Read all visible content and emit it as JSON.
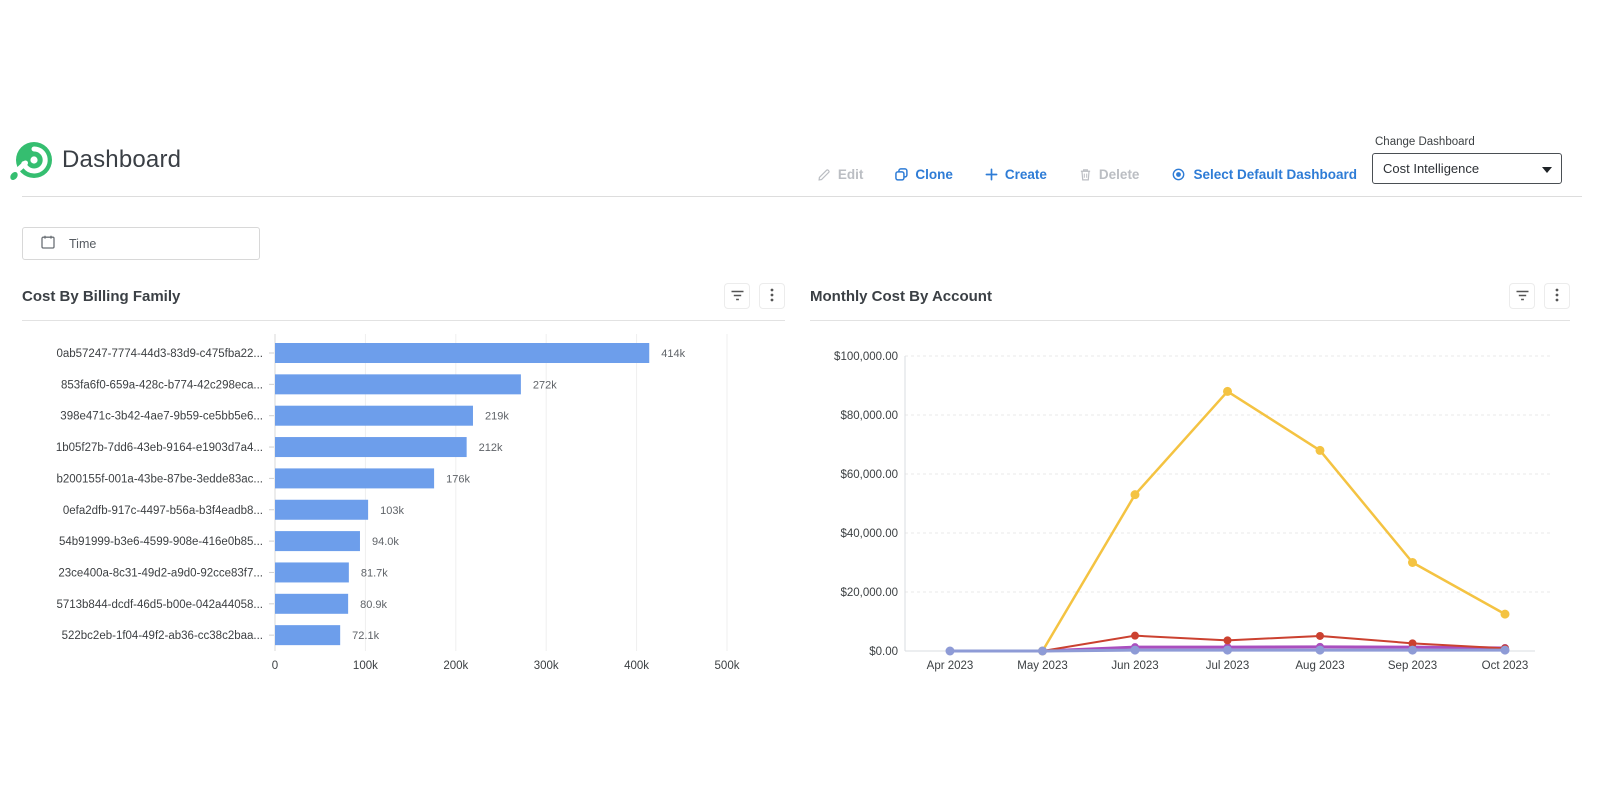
{
  "header": {
    "title": "Dashboard",
    "logo": "green-swirl-logo",
    "actions": [
      {
        "label": "Edit",
        "icon": "pencil-icon",
        "enabled": false
      },
      {
        "label": "Clone",
        "icon": "clone-icon",
        "enabled": true
      },
      {
        "label": "Create",
        "icon": "plus-icon",
        "enabled": true
      },
      {
        "label": "Delete",
        "icon": "trash-icon",
        "enabled": false
      },
      {
        "label": "Select Default Dashboard",
        "icon": "eye-icon",
        "enabled": true
      }
    ],
    "change_dashboard": {
      "label": "Change Dashboard",
      "value": "Cost Intelligence"
    }
  },
  "filter_bar": {
    "time_button_label": "Time"
  },
  "colors": {
    "accent_blue": "#2e7cd6",
    "disabled_gray": "#bbbec3",
    "bar_blue": "#6d9eeb",
    "line_yellow": "#f4c342",
    "line_red": "#cb4130",
    "line_purple": "#a94fbf",
    "line_periwinkle": "#8e9bd6",
    "logo_green": "#35be70"
  },
  "chart_data": [
    {
      "type": "bar",
      "orientation": "horizontal",
      "title": "Cost By Billing Family",
      "categories": [
        "0ab57247-7774-44d3-83d9-c475fba22...",
        "853fa6f0-659a-428c-b774-42c298eca...",
        "398e471c-3b42-4ae7-9b59-ce5bb5e6...",
        "1b05f27b-7dd6-43eb-9164-e1903d7a4...",
        "b200155f-001a-43be-87be-3edde83ac...",
        "0efa2dfb-917c-4497-b56a-b3f4eadb8...",
        "54b91999-b3e6-4599-908e-416e0b85...",
        "23ce400a-8c31-49d2-a9d0-92cce83f7...",
        "5713b844-dcdf-46d5-b00e-042a44058...",
        "522bc2eb-1f04-49f2-ab36-cc38c2baa..."
      ],
      "values": [
        414000,
        272000,
        219000,
        212000,
        176000,
        103000,
        94000,
        81700,
        80900,
        72100
      ],
      "value_labels": [
        "414k",
        "272k",
        "219k",
        "212k",
        "176k",
        "103k",
        "94.0k",
        "81.7k",
        "80.9k",
        "72.1k"
      ],
      "x_ticks": [
        "0",
        "100k",
        "200k",
        "300k",
        "400k",
        "500k"
      ],
      "xlim": [
        0,
        500000
      ],
      "grid": true,
      "bar_color": "#6d9eeb",
      "legend": "none"
    },
    {
      "type": "line",
      "title": "Monthly Cost By Account",
      "x": [
        "Apr 2023",
        "May 2023",
        "Jun 2023",
        "Jul 2023",
        "Aug 2023",
        "Sep 2023",
        "Oct 2023"
      ],
      "y_ticks": [
        "$0.00",
        "$20,000.00",
        "$40,000.00",
        "$60,000.00",
        "$80,000.00",
        "$100,000.00"
      ],
      "ylim": [
        0,
        100000
      ],
      "grid": true,
      "legend": "none",
      "series": [
        {
          "name": "account-series-purple",
          "color": "#a94fbf",
          "width": 3,
          "dot": 4,
          "values": [
            null,
            0,
            1300,
            1300,
            1400,
            1300,
            1000
          ]
        },
        {
          "name": "account-series-red",
          "color": "#cb4130",
          "width": 2,
          "dot": 4,
          "values": [
            null,
            0,
            5200,
            3600,
            5100,
            2600,
            900
          ]
        },
        {
          "name": "account-series-yellow",
          "color": "#f4c342",
          "width": 2.5,
          "dot": 4.5,
          "values": [
            null,
            0,
            53000,
            88000,
            68000,
            30000,
            12500
          ]
        },
        {
          "name": "account-series-periwinkle",
          "color": "#8e9bd6",
          "width": 3,
          "dot": 4.5,
          "values": [
            0,
            0,
            300,
            300,
            300,
            300,
            300
          ]
        }
      ]
    }
  ]
}
